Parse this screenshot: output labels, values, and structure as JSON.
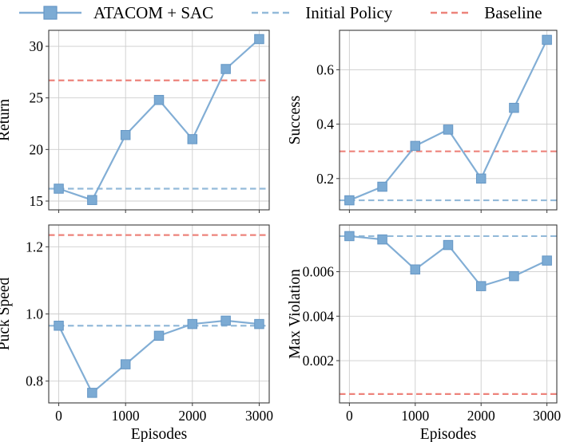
{
  "legend": {
    "items": [
      {
        "label": "ATACOM + SAC",
        "style": "line-marker",
        "color": "#7cabd4"
      },
      {
        "label": "Initial Policy",
        "style": "dashed",
        "color": "#93bad9"
      },
      {
        "label": "Baseline",
        "style": "dashed",
        "color": "#ed837b"
      }
    ]
  },
  "colors": {
    "series_line": "#82aed5",
    "marker_fill": "#7cabd4",
    "marker_edge": "#6697c5",
    "initial_policy": "#93bad9",
    "baseline": "#ed837b",
    "grid": "#cdcdcd",
    "spine": "#3a3a3a",
    "text": "#000000"
  },
  "chart_data": [
    {
      "type": "line",
      "title": "",
      "ylabel": "Return",
      "xlabel": "",
      "x": [
        0,
        500,
        1000,
        1500,
        2000,
        2500,
        3000
      ],
      "series": [
        {
          "name": "ATACOM + SAC",
          "values": [
            16.2,
            15.1,
            21.4,
            24.8,
            21.0,
            27.8,
            30.7
          ]
        }
      ],
      "hlines": [
        {
          "name": "Initial Policy",
          "value": 16.2
        },
        {
          "name": "Baseline",
          "value": 26.7
        }
      ],
      "xlim": [
        -150,
        3150
      ],
      "ylim": [
        14.15,
        31.55
      ],
      "xticks": [
        0,
        1000,
        2000,
        3000
      ],
      "xtick_labels": [
        "0",
        "1000",
        "2000",
        "3000"
      ],
      "show_xtick_labels": false,
      "yticks": [
        15,
        20,
        25,
        30
      ],
      "ytick_labels": [
        "15",
        "20",
        "25",
        "30"
      ],
      "grid": true,
      "legend_position": "top"
    },
    {
      "type": "line",
      "title": "",
      "ylabel": "Success",
      "xlabel": "",
      "x": [
        0,
        500,
        1000,
        1500,
        2000,
        2500,
        3000
      ],
      "series": [
        {
          "name": "ATACOM + SAC",
          "values": [
            0.12,
            0.17,
            0.32,
            0.38,
            0.2,
            0.46,
            0.71
          ]
        }
      ],
      "hlines": [
        {
          "name": "Initial Policy",
          "value": 0.12
        },
        {
          "name": "Baseline",
          "value": 0.3
        }
      ],
      "xlim": [
        -150,
        3150
      ],
      "ylim": [
        0.085,
        0.745
      ],
      "xticks": [
        0,
        1000,
        2000,
        3000
      ],
      "xtick_labels": [
        "0",
        "1000",
        "2000",
        "3000"
      ],
      "show_xtick_labels": false,
      "yticks": [
        0.2,
        0.4,
        0.6
      ],
      "ytick_labels": [
        "0.2",
        "0.4",
        "0.6"
      ],
      "grid": true,
      "legend_position": "top"
    },
    {
      "type": "line",
      "title": "",
      "ylabel": "Puck Speed",
      "xlabel": "Episodes",
      "x": [
        0,
        500,
        1000,
        1500,
        2000,
        2500,
        3000
      ],
      "series": [
        {
          "name": "ATACOM + SAC",
          "values": [
            0.965,
            0.765,
            0.85,
            0.935,
            0.97,
            0.98,
            0.97
          ]
        }
      ],
      "hlines": [
        {
          "name": "Initial Policy",
          "value": 0.965
        },
        {
          "name": "Baseline",
          "value": 1.235
        }
      ],
      "xlim": [
        -150,
        3150
      ],
      "ylim": [
        0.735,
        1.265
      ],
      "xticks": [
        0,
        1000,
        2000,
        3000
      ],
      "xtick_labels": [
        "0",
        "1000",
        "2000",
        "3000"
      ],
      "show_xtick_labels": true,
      "yticks": [
        0.8,
        1.0,
        1.2
      ],
      "ytick_labels": [
        "0.8",
        "1.0",
        "1.2"
      ],
      "grid": true,
      "legend_position": "top"
    },
    {
      "type": "line",
      "title": "",
      "ylabel": "Max Violation",
      "xlabel": "Episodes",
      "x": [
        0,
        500,
        1000,
        1500,
        2000,
        2500,
        3000
      ],
      "series": [
        {
          "name": "ATACOM + SAC",
          "values": [
            0.0076,
            0.00745,
            0.0061,
            0.0072,
            0.00535,
            0.0058,
            0.0065
          ]
        }
      ],
      "hlines": [
        {
          "name": "Initial Policy",
          "value": 0.0076
        },
        {
          "name": "Baseline",
          "value": 0.0005
        }
      ],
      "xlim": [
        -150,
        3150
      ],
      "ylim": [
        0.0001,
        0.0081
      ],
      "xticks": [
        0,
        1000,
        2000,
        3000
      ],
      "xtick_labels": [
        "0",
        "1000",
        "2000",
        "3000"
      ],
      "show_xtick_labels": true,
      "yticks": [
        0.002,
        0.004,
        0.006
      ],
      "ytick_labels": [
        "0.002",
        "0.004",
        "0.006"
      ],
      "grid": true,
      "legend_position": "top"
    }
  ]
}
